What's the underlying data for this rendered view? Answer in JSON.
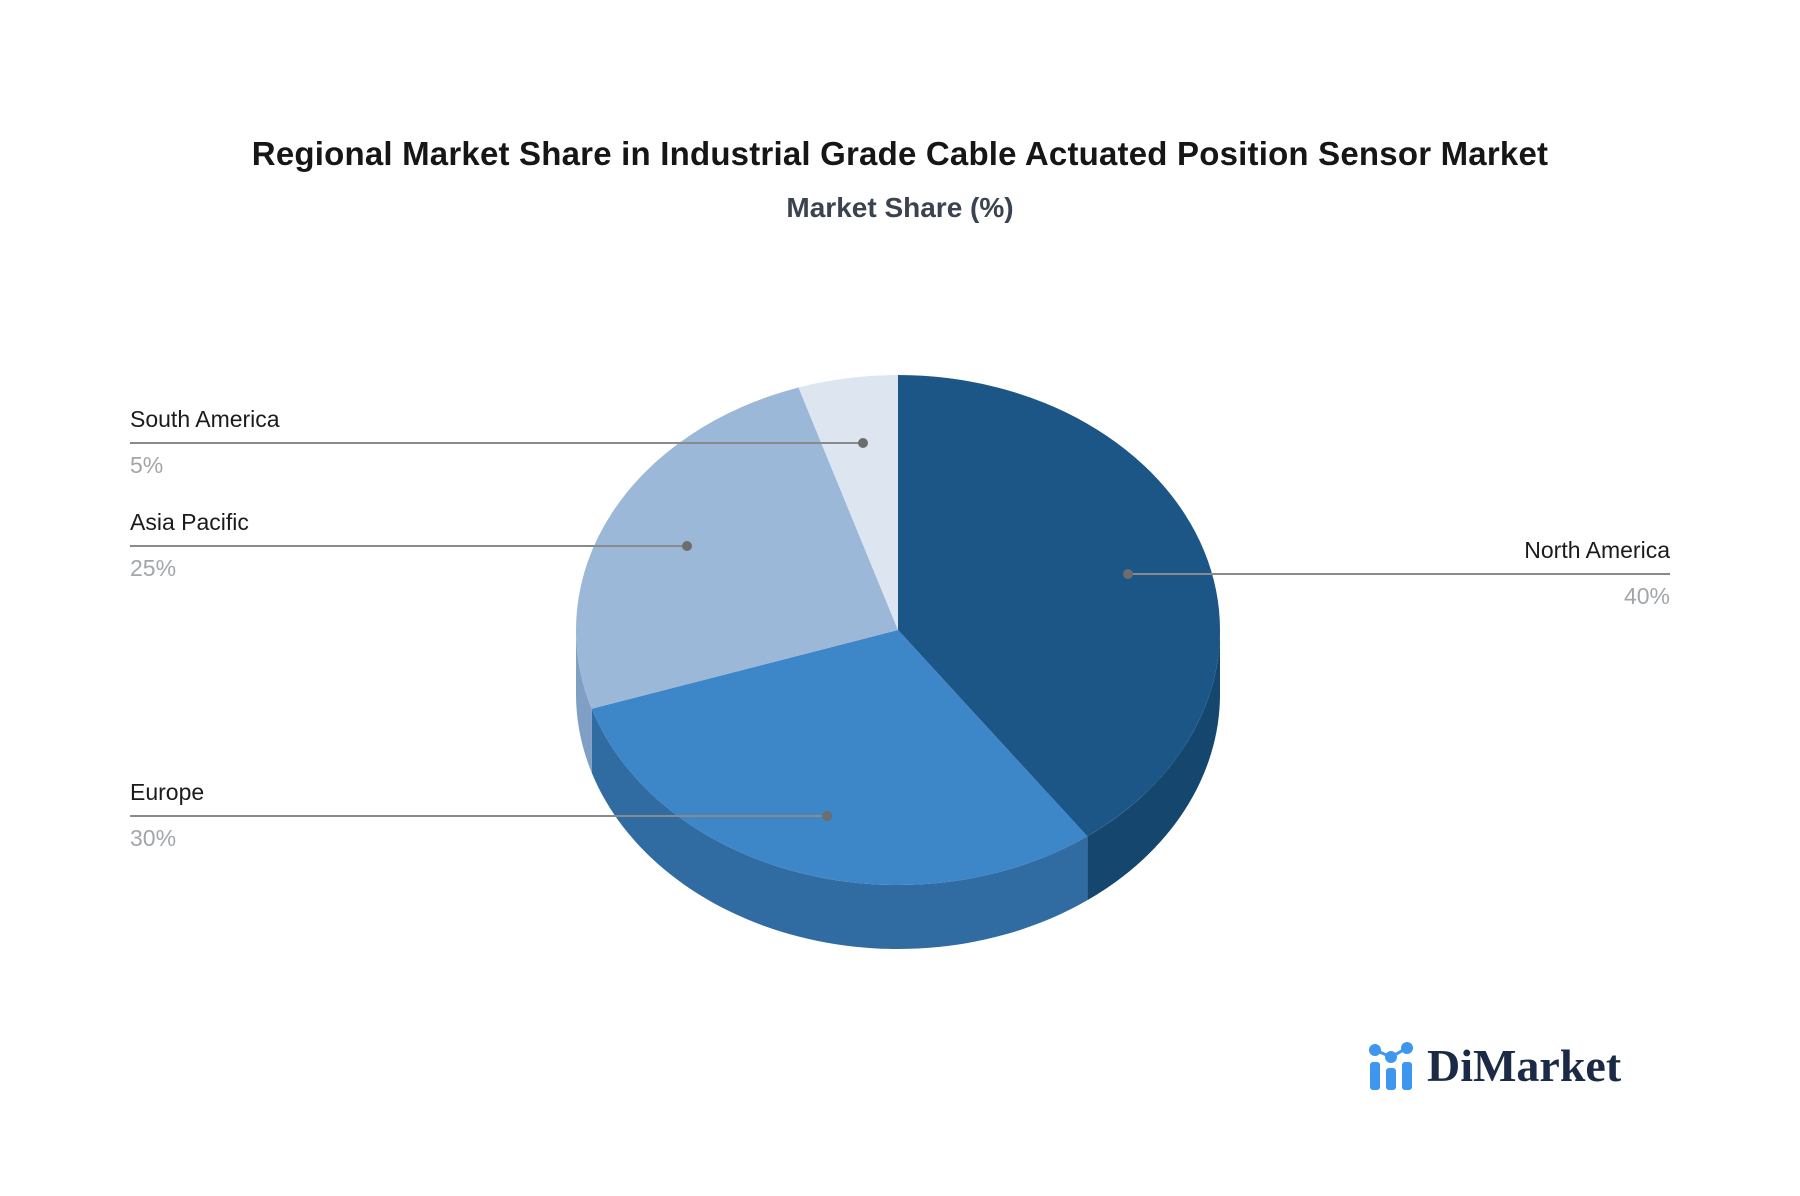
{
  "title": "Regional Market Share in Industrial Grade Cable Actuated Position Sensor Market",
  "subtitle": "Market Share (%)",
  "chart_data": {
    "type": "pie",
    "style": "3d-pie",
    "title": "Regional Market Share in Industrial Grade Cable Actuated Position Sensor Market",
    "subtitle": "Market Share (%)",
    "unit": "%",
    "start_angle_deg": 0,
    "direction": "clockwise",
    "labels": [
      "North America",
      "Europe",
      "Asia Pacific",
      "South America"
    ],
    "values": [
      40,
      30,
      25,
      5
    ],
    "colors": [
      "#1c5687",
      "#3d86c7",
      "#9cb8d9",
      "#dde5f0"
    ],
    "side_colors": [
      "#14466e",
      "#306ba1",
      "#7f9fc4",
      "#b9c6d8"
    ],
    "legend": "none",
    "label_style": "callouts-with-leader-lines",
    "callouts": {
      "north_america": {
        "name": "North America",
        "value": "40%"
      },
      "europe": {
        "name": "Europe",
        "value": "30%"
      },
      "asia_pacific": {
        "name": "Asia Pacific",
        "value": "25%"
      },
      "south_america": {
        "name": "South America",
        "value": "5%"
      }
    }
  },
  "leader_line_color": "#8a8a8a",
  "leader_dot_color": "#6d6d6d",
  "logo": {
    "text": "DiMarket",
    "icon": "bar-line-chart-icon",
    "icon_color": "#3e97ef",
    "text_color": "#1c2b45"
  }
}
